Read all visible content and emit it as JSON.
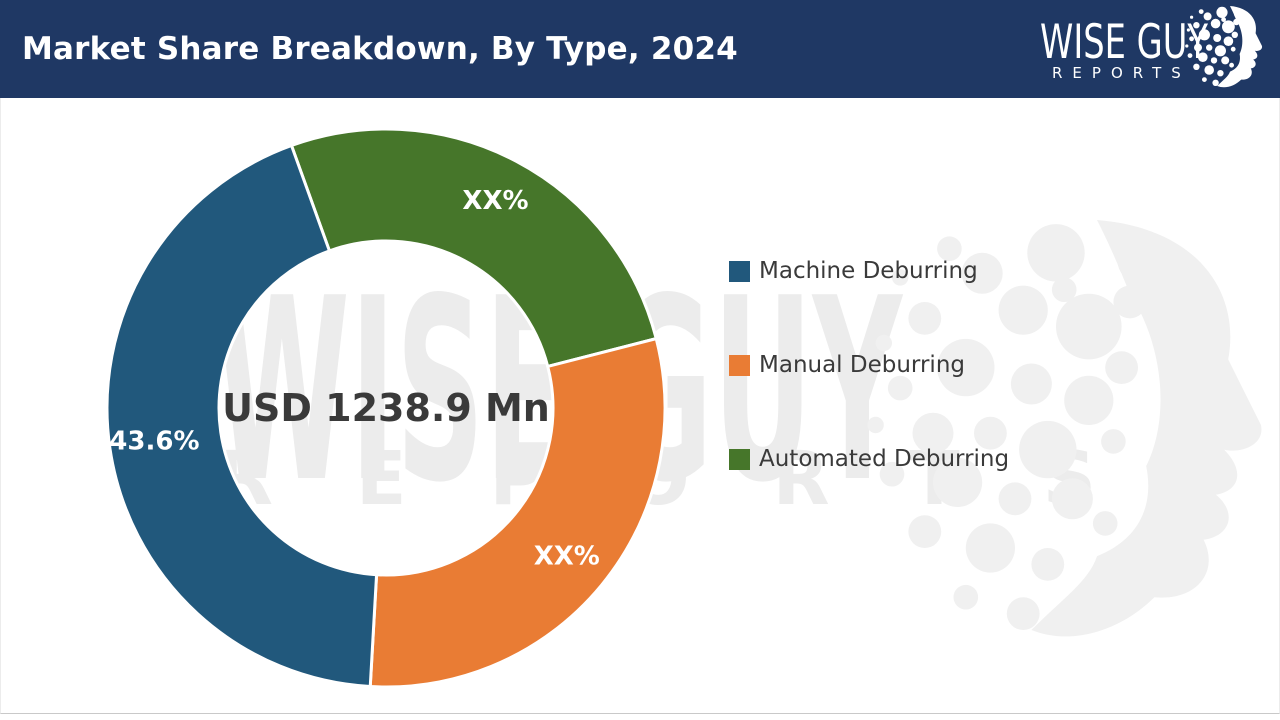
{
  "header": {
    "title": "Market Share Breakdown, By Type, 2024",
    "bg_color": "#1f3864",
    "logo": {
      "line1": "WISE GUY",
      "line2": "REPORTS"
    }
  },
  "watermark": {
    "line1": "WISE GUY",
    "line2": "REPORTS"
  },
  "chart_data": {
    "type": "donut",
    "title": "Market Share Breakdown, By Type, 2024",
    "center_label": "USD 1238.9 Mn",
    "units": "percent",
    "rotation_deg": -19.8,
    "legend_position": "right",
    "segments": [
      {
        "label": "Machine Deburring",
        "value_pct": 43.6,
        "slice_label": "43.6%",
        "color": "#21587c"
      },
      {
        "label": "Manual Deburring",
        "value_pct": 29.9,
        "slice_label": "XX%",
        "color": "#e97c34"
      },
      {
        "label": "Automated Deburring",
        "value_pct": 26.5,
        "slice_label": "XX%",
        "color": "#46762a"
      }
    ],
    "draw_order": [
      2,
      1,
      0
    ]
  }
}
